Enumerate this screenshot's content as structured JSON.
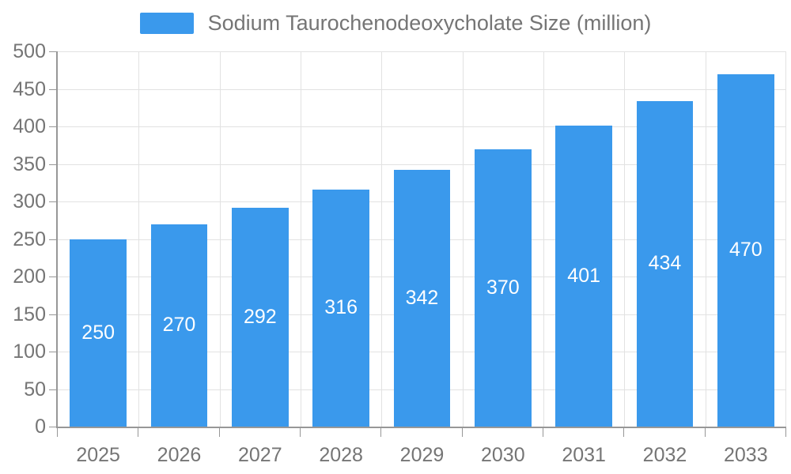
{
  "chart_data": {
    "type": "bar",
    "title": "",
    "legend": "Sodium Taurochenodeoxycholate Size (million)",
    "categories": [
      "2025",
      "2026",
      "2027",
      "2028",
      "2029",
      "2030",
      "2031",
      "2032",
      "2033"
    ],
    "values": [
      250,
      270,
      292,
      316,
      342,
      370,
      401,
      434,
      470
    ],
    "xlabel": "",
    "ylabel": "",
    "ylim": [
      0,
      500
    ],
    "ytick_step": 50,
    "yticks": [
      0,
      50,
      100,
      150,
      200,
      250,
      300,
      350,
      400,
      450,
      500
    ],
    "grid": true,
    "legend_position": "top-center",
    "bar_color": "#3A99EC",
    "bar_label_color": "#ffffff",
    "axis_text_color": "#757575",
    "grid_color": "#e2e2e2",
    "axis_line_color": "#979797",
    "bar_width_fraction": 0.703
  }
}
